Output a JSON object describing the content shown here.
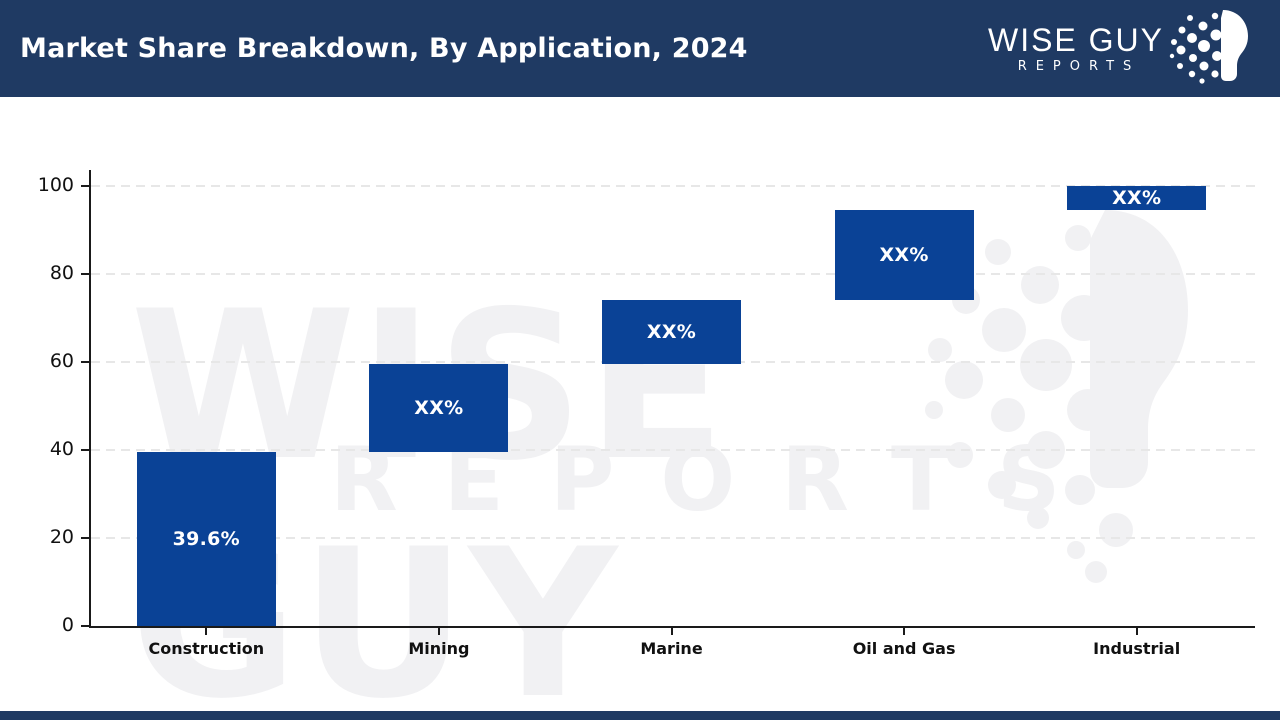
{
  "header": {
    "title": "Market Share Breakdown, By Application, 2024",
    "logo": {
      "line1": "WISE GUY",
      "line2": "REPORTS"
    }
  },
  "watermark": {
    "line1": "WISE GUY",
    "line2": "REPORTS"
  },
  "colors": {
    "header_bg": "#1f3a63",
    "bar": "#0a4296",
    "grid": "#e7e7e7",
    "axis": "#1a1a1a",
    "bar_label": "#ffffff",
    "watermark": "#f1f1f3"
  },
  "chart_data": {
    "type": "bar",
    "subtype": "waterfall",
    "title": "Market Share Breakdown, By Application, 2024",
    "xlabel": "",
    "ylabel": "",
    "categories": [
      "Construction",
      "Mining",
      "Marine",
      "Oil and Gas",
      "Industrial"
    ],
    "segments": [
      {
        "category": "Construction",
        "start": 0,
        "end": 39.6,
        "label": "39.6%"
      },
      {
        "category": "Mining",
        "start": 39.6,
        "end": 59.6,
        "label": "XX%"
      },
      {
        "category": "Marine",
        "start": 59.6,
        "end": 74.0,
        "label": "XX%"
      },
      {
        "category": "Oil and Gas",
        "start": 74.0,
        "end": 94.5,
        "label": "XX%"
      },
      {
        "category": "Industrial",
        "start": 94.5,
        "end": 100.0,
        "label": "XX%"
      }
    ],
    "yticks": [
      0,
      20,
      40,
      60,
      80,
      100
    ],
    "ylim": [
      0,
      104
    ],
    "grid": "horizontal-dashed",
    "legend": "none"
  }
}
